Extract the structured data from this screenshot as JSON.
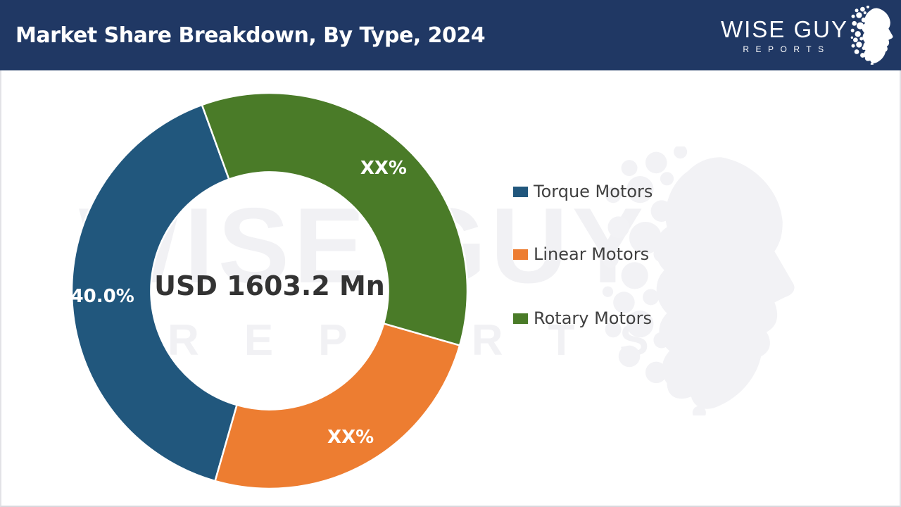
{
  "header": {
    "title": "Market Share Breakdown, By Type, 2024",
    "logo": {
      "line1": "WISE GUY",
      "line2": "REPORTS"
    }
  },
  "watermark": {
    "line1": "WISE GUY",
    "line2": "REPORTS"
  },
  "colors": {
    "header_bg": "#203864",
    "title_text": "#ffffff",
    "torque_blue": "#21577D",
    "linear_orange": "#ED7D31",
    "rotary_green": "#4A7B28",
    "center_text": "#333333",
    "legend_text": "#404040",
    "watermark_gray": "#f1f1f4",
    "slice_separator": "#ffffff"
  },
  "chart_data": {
    "type": "donut",
    "title": "Market Share Breakdown, By Type, 2024",
    "center_label": "USD 1603.2 Mn",
    "start_angle_deg": 110,
    "direction": "counterclockwise",
    "inner_radius_ratio": 0.6,
    "label_radius_ratio": 0.845,
    "legend_position": "right",
    "slices": [
      {
        "name": "Torque Motors",
        "value_pct": 40.0,
        "label": "40.0%",
        "color": "#21577D"
      },
      {
        "name": "Linear Motors",
        "value_pct": 25.0,
        "label": "XX%",
        "color": "#ED7D31"
      },
      {
        "name": "Rotary Motors",
        "value_pct": 35.0,
        "label": "XX%",
        "color": "#4A7B28"
      }
    ]
  }
}
